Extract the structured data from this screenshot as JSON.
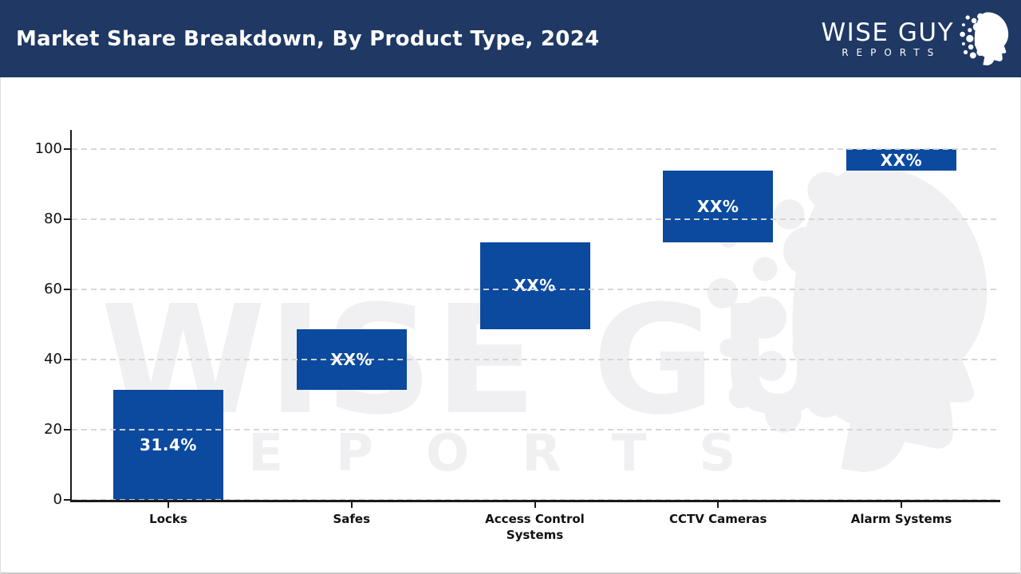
{
  "header": {
    "title": "Market Share Breakdown, By Product Type, 2024",
    "logo": {
      "line1": "WISE GUY",
      "line2": "REPORTS"
    }
  },
  "watermark": {
    "line1": "WISE GUY",
    "line2": "REPORTS"
  },
  "chart_data": {
    "type": "bar",
    "subtype": "waterfall",
    "title": "Market Share Breakdown, By Product Type, 2024",
    "categories": [
      "Locks",
      "Safes",
      "Access Control Systems",
      "CCTV Cameras",
      "Alarm Systems"
    ],
    "segments": [
      {
        "category": "Locks",
        "start": 0,
        "end": 31.4,
        "label": "31.4%"
      },
      {
        "category": "Safes",
        "start": 31.4,
        "end": 48.7,
        "label": "XX%"
      },
      {
        "category": "Access Control Systems",
        "start": 48.7,
        "end": 73.5,
        "label": "XX%"
      },
      {
        "category": "CCTV Cameras",
        "start": 73.5,
        "end": 93.8,
        "label": "XX%"
      },
      {
        "category": "Alarm Systems",
        "start": 93.8,
        "end": 100,
        "label": "XX%"
      }
    ],
    "yticks": [
      0,
      20,
      40,
      60,
      80,
      100
    ],
    "ylim": [
      0,
      100
    ],
    "grid": "dashed horizontal gridlines drawn over bars",
    "legend": "none",
    "bar_color": "#0b4a9f",
    "bar_label_color": "#ffffff"
  },
  "colors": {
    "header_bg": "#1f3864",
    "bar": "#0b4a9f",
    "grid": "#d5d5d5",
    "axis": "#1a1a1a",
    "watermark": "#f0f0f2",
    "title_text": "#ffffff"
  }
}
